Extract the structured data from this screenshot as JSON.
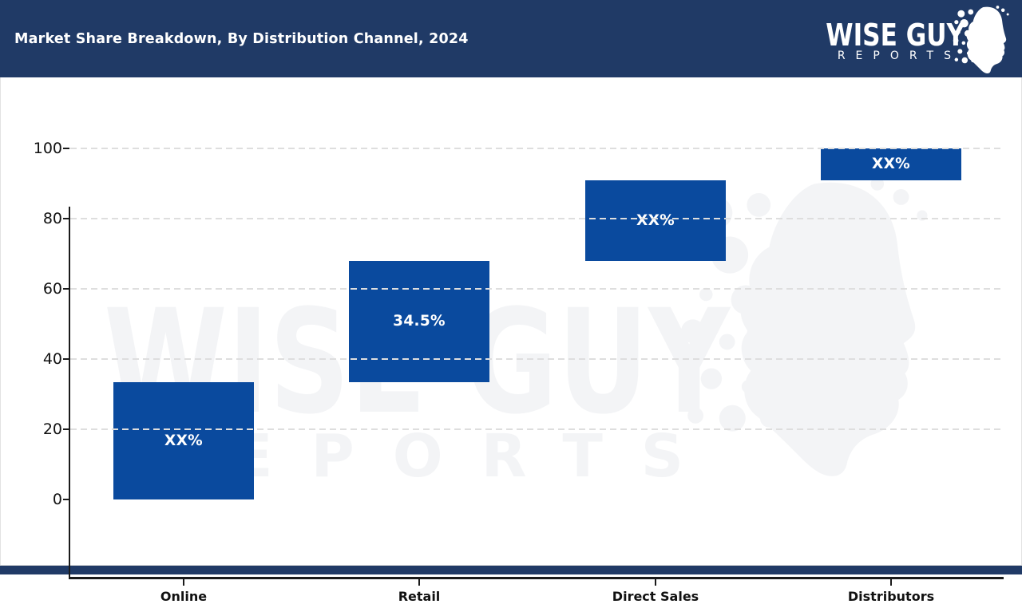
{
  "header": {
    "title": "Market Share Breakdown, By Distribution Channel, 2024",
    "logo": {
      "primary": "WISE GUY",
      "secondary": "REPORTS"
    }
  },
  "watermark": {
    "primary": "WISE GUY",
    "secondary": "REPORTS"
  },
  "colors": {
    "header_bg": "#203a66",
    "footer_bg": "#203a66",
    "page_bg": "#ffffff",
    "bar_fill": "#0a4a9e",
    "bar_label_text": "#ffffff",
    "grid_line": "#dedede",
    "axis_line": "#1a1a1a",
    "tick_label": "#111111",
    "watermark": "#f3f4f6",
    "logo_text": "#ffffff"
  },
  "chart_data": {
    "type": "bar",
    "subtype": "floating-waterfall",
    "title": "Market Share Breakdown, By Distribution Channel, 2024",
    "categories": [
      "Online",
      "Retail",
      "Direct Sales",
      "Distributors"
    ],
    "series": [
      {
        "name": "Market share (%)",
        "ranges": [
          [
            0,
            33.5
          ],
          [
            33.5,
            68
          ],
          [
            68,
            91
          ],
          [
            91,
            100
          ]
        ],
        "labels": [
          "XX%",
          "34.5%",
          "XX%",
          "XX%"
        ]
      }
    ],
    "ylim": [
      0,
      100
    ],
    "yticks": [
      0,
      20,
      40,
      60,
      80,
      100
    ],
    "xlabel": "",
    "ylabel": "",
    "grid": "horizontal-dashed",
    "legend": "none"
  }
}
